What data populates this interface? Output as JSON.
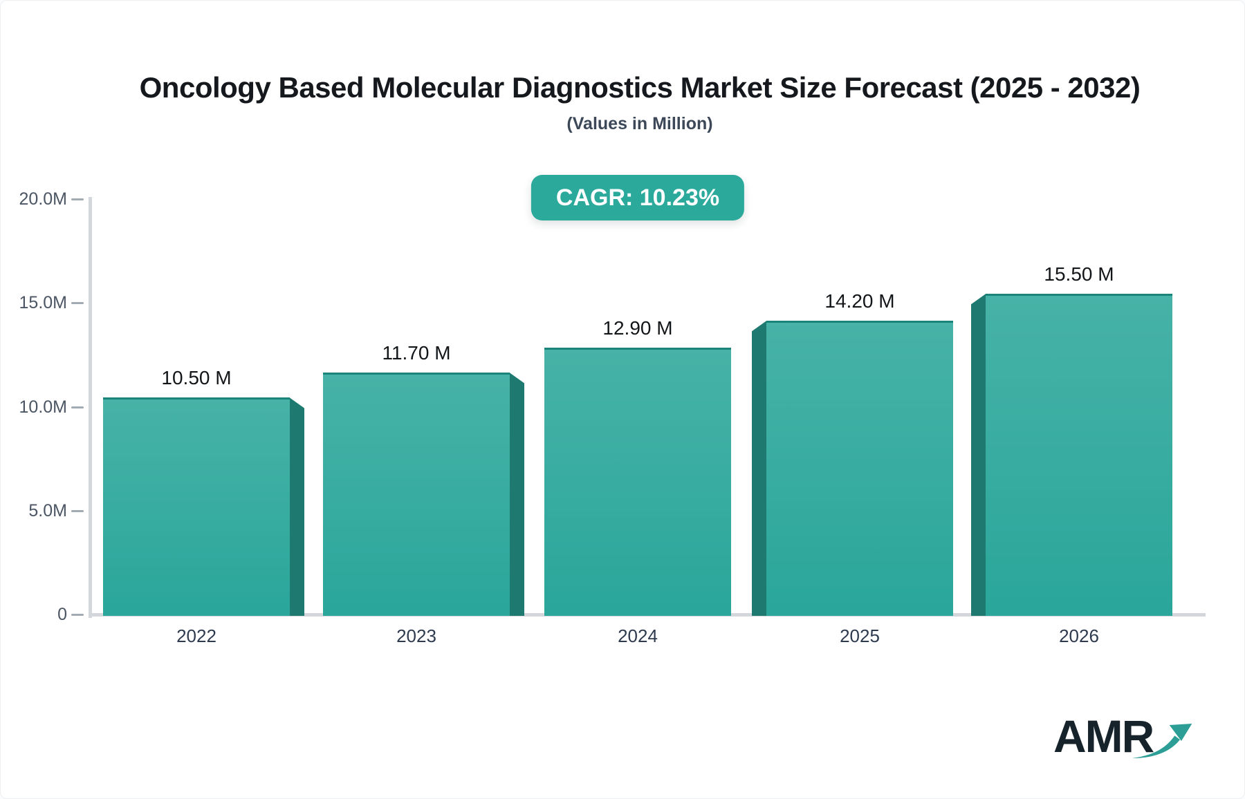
{
  "header": {
    "title": "Oncology Based Molecular Diagnostics Market Size Forecast (2025 - 2032)",
    "subtitle": "(Values in Million)",
    "cagr_label": "CAGR: 10.23%"
  },
  "chart_data": {
    "type": "bar",
    "title": "Oncology Based Molecular Diagnostics Market Size Forecast (2025 - 2032)",
    "subtitle": "(Values in Million)",
    "unit": "Million",
    "cagr": "10.23%",
    "categories": [
      "2022",
      "2023",
      "2024",
      "2025",
      "2026"
    ],
    "values": [
      10.5,
      11.7,
      12.9,
      14.2,
      15.5
    ],
    "value_labels": [
      "10.50 M",
      "11.70 M",
      "12.90 M",
      "14.20 M",
      "15.50 M"
    ],
    "y_axis": {
      "min": 0,
      "max": 20,
      "ticks": [
        {
          "value": 0,
          "label": "0"
        },
        {
          "value": 5,
          "label": "5.0M"
        },
        {
          "value": 10,
          "label": "10.0M"
        },
        {
          "value": 15,
          "label": "15.0M"
        },
        {
          "value": 20,
          "label": "20.0M"
        }
      ]
    },
    "grid": "off",
    "legend": "none",
    "bar_style": "3d-extruded"
  },
  "logo": {
    "text": "AMR"
  },
  "colors": {
    "accent_teal": "#2baa9c",
    "bar_top": "#47b2a7",
    "bar_bottom": "#2aa69a",
    "bar_side": "#1e7a71",
    "bar_edge": "#1a837a",
    "axis_line": "#d3d7dc",
    "tick_dash": "#a2aab4",
    "tick_text": "#4b5563",
    "category_text": "#2e3a4e",
    "value_text": "#131619",
    "logo_text": "#16232b",
    "logo_arrow": "#2d9e95"
  }
}
